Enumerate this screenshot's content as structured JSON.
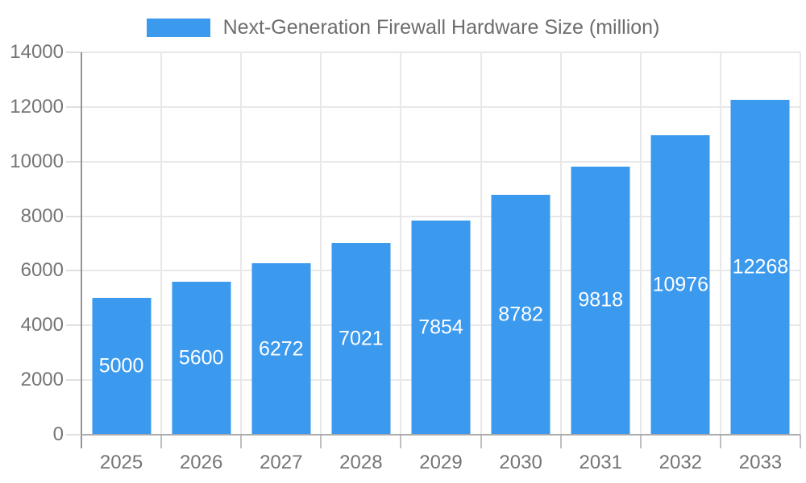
{
  "chart_data": {
    "type": "bar",
    "title": "Next-Generation Firewall Hardware Size (million)",
    "categories": [
      "2025",
      "2026",
      "2027",
      "2028",
      "2029",
      "2030",
      "2031",
      "2032",
      "2033"
    ],
    "values": [
      5000,
      5600,
      6272,
      7021,
      7854,
      8782,
      9818,
      10976,
      12268
    ],
    "xlabel": "",
    "ylabel": "",
    "ylim": [
      0,
      14000
    ],
    "ytick_step": 2000,
    "yticks": [
      "0",
      "2000",
      "4000",
      "6000",
      "8000",
      "10000",
      "12000",
      "14000"
    ],
    "legend_position": "top",
    "grid": "on",
    "bar_color": "#3B99EE",
    "value_label_color": "#ffffff",
    "axis_label_color": "#757575",
    "legend_text_color": "#6d6d6d"
  }
}
